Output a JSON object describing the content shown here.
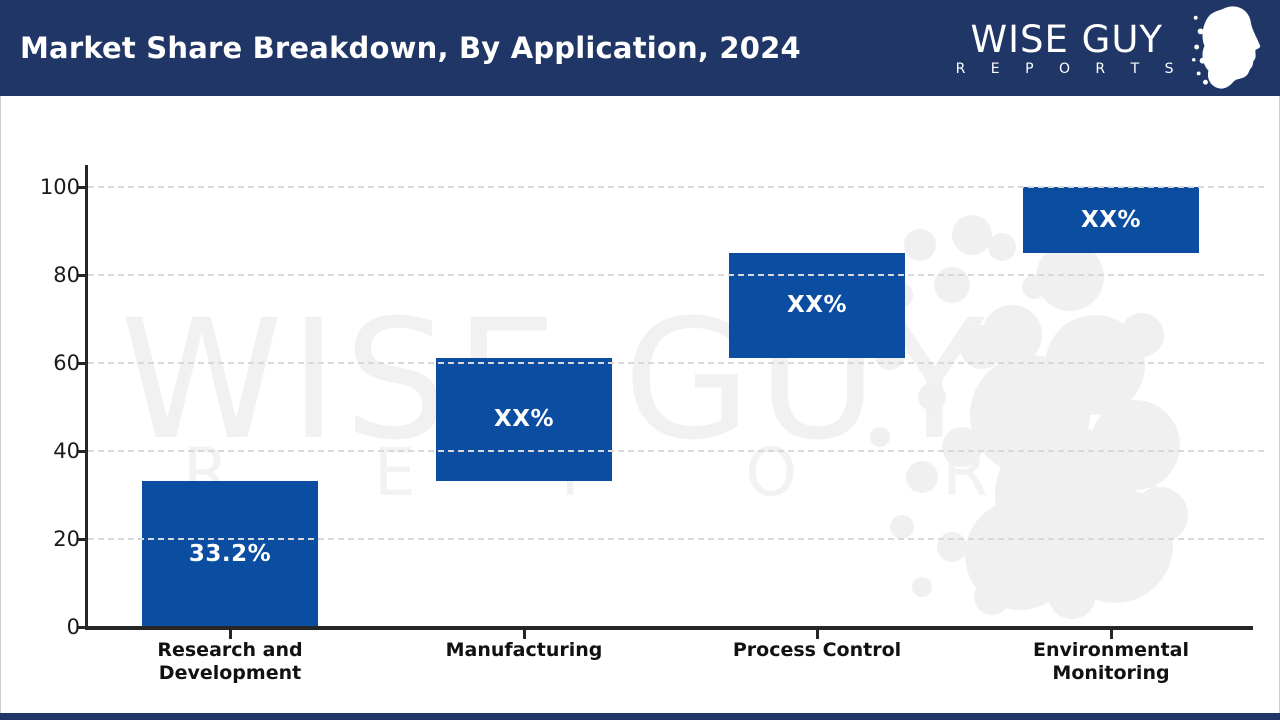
{
  "header": {
    "title": "Market Share Breakdown, By Application, 2024",
    "bg_color": "#1f3666",
    "brand": {
      "name_top": "WISE GUY",
      "name_bottom": "R E P O R T S"
    }
  },
  "watermark": {
    "text_top": "WISE GUY",
    "text_bottom": "R E P O R T S"
  },
  "chart_data": {
    "type": "bar",
    "variant": "floating-segment-breakdown",
    "title": "Market Share Breakdown, By Application, 2024",
    "categories": [
      "Research and Development",
      "Manufacturing",
      "Process Control",
      "Environmental Monitoring"
    ],
    "category_label_lines": [
      [
        "Research and",
        "Development"
      ],
      [
        "Manufacturing"
      ],
      [
        "Process Control"
      ],
      [
        "Environmental",
        "Monitoring"
      ]
    ],
    "segments": [
      {
        "category": "Research and Development",
        "from": 0,
        "to": 33.2,
        "label": "33.2%",
        "approx_value": 33.2
      },
      {
        "category": "Manufacturing",
        "from": 33.2,
        "to": 61.2,
        "label": "XX%",
        "approx_value": 28.0
      },
      {
        "category": "Process Control",
        "from": 61.2,
        "to": 85.0,
        "label": "XX%",
        "approx_value": 23.8
      },
      {
        "category": "Environmental Monitoring",
        "from": 85.0,
        "to": 100.0,
        "label": "XX%",
        "approx_value": 15.0
      }
    ],
    "xlabel": "",
    "ylabel": "",
    "yticks": [
      0,
      20,
      40,
      60,
      80,
      100
    ],
    "ylim": [
      0,
      105
    ],
    "grid": "horizontal-dashed",
    "legend": "none",
    "bar_color": "#0b4da1",
    "bar_label_color": "#ffffff",
    "axis_color": "#262626"
  }
}
